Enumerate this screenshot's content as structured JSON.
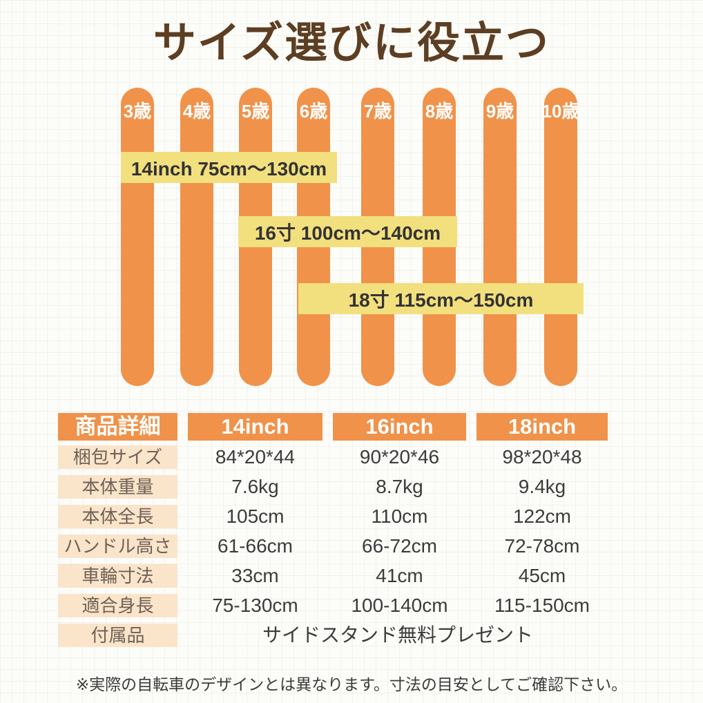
{
  "page": {
    "title": "サイズ選びに役立つ",
    "footnote": "※実際の自転車のデザインとは異なります。寸法の目安としてご確認下さい。"
  },
  "chart_data": [
    {
      "type": "bar",
      "subtype": "age-range-bands",
      "title": "サイズ選びに役立つ",
      "x_categories": [
        "3歳",
        "4歳",
        "5歳",
        "6歳",
        "7歳",
        "8歳",
        "9歳",
        "10歳"
      ],
      "series": [
        {
          "name": "14inch",
          "label": "14inch 75cm〜130cm",
          "age_span": [
            "3歳",
            "6歳"
          ],
          "fit_height_cm": [
            75,
            130
          ]
        },
        {
          "name": "16寸",
          "label": "16寸 100cm〜140cm",
          "age_span": [
            "5歳",
            "8歳"
          ],
          "fit_height_cm": [
            100,
            140
          ]
        },
        {
          "name": "18寸",
          "label": "18寸 115cm〜150cm",
          "age_span": [
            "6歳",
            "10歳"
          ],
          "fit_height_cm": [
            115,
            150
          ]
        }
      ],
      "legend_position": "none",
      "grid": true
    },
    {
      "type": "table",
      "header": {
        "label": "商品詳細",
        "columns": [
          "14inch",
          "16inch",
          "18inch"
        ]
      },
      "rows": [
        {
          "label": "梱包サイズ",
          "values": [
            "84*20*44",
            "90*20*46",
            "98*20*48"
          ]
        },
        {
          "label": "本体重量",
          "values": [
            "7.6kg",
            "8.7kg",
            "9.4kg"
          ]
        },
        {
          "label": "本体全長",
          "values": [
            "105cm",
            "110cm",
            "122cm"
          ]
        },
        {
          "label": "ハンドル高さ",
          "values": [
            "61-66cm",
            "66-72cm",
            "72-78cm"
          ]
        },
        {
          "label": "車輪寸法",
          "values": [
            "33cm",
            "41cm",
            "45cm"
          ]
        },
        {
          "label": "適合身長",
          "values": [
            "75-130cm",
            "100-140cm",
            "115-150cm"
          ]
        },
        {
          "label": "付属品",
          "values": [
            "サイドスタンド無料プレゼント"
          ],
          "colspan": 3
        }
      ]
    }
  ],
  "colors": {
    "pillar_orange": "#F0924A",
    "band_yellow": "#F2DF7E",
    "row_label_peach": "#FAE4CA",
    "title_brown": "#5D3E22",
    "body_text": "#3B3B3B",
    "row_label_text": "#6F6156",
    "header_text": "#FFFFFF"
  }
}
